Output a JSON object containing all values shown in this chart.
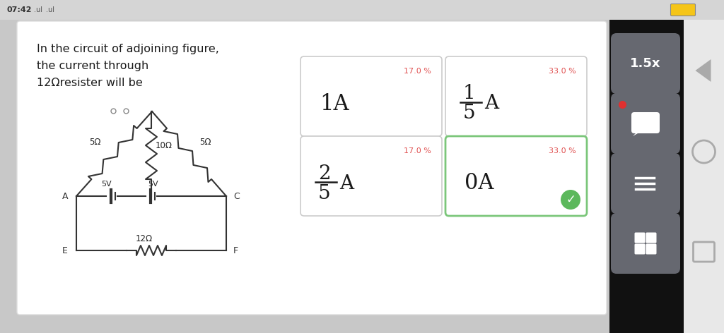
{
  "bg_color": "#c8c8c8",
  "card_bg": "#ffffff",
  "title_line1": "In the circuit of adjoining figure,",
  "title_line2": "the current through",
  "title_line3": "12Ωresister will be",
  "options": [
    {
      "label": "1A",
      "percent": "17.0 %",
      "correct": false,
      "row": 0,
      "col": 0
    },
    {
      "label": "1/5 A",
      "percent": "33.0 %",
      "correct": false,
      "row": 0,
      "col": 1
    },
    {
      "label": "2/5 A",
      "percent": "17.0 %",
      "correct": false,
      "row": 1,
      "col": 0
    },
    {
      "label": "0A",
      "percent": "33.0 %",
      "correct": true,
      "row": 1,
      "col": 1
    }
  ],
  "status_bar_bg": "#d0d0d0",
  "sidebar_bg": "#111111",
  "sidebar_btn_bg": "#666870",
  "percent_color": "#e05050",
  "correct_border": "#7bc67a",
  "correct_bg": "#ffffff",
  "normal_border": "#cccccc",
  "normal_bg": "#ffffff",
  "check_color": "#5cb85c",
  "nav_bg": "#e8e8e8",
  "nav_shape_color": "#aaaaaa"
}
